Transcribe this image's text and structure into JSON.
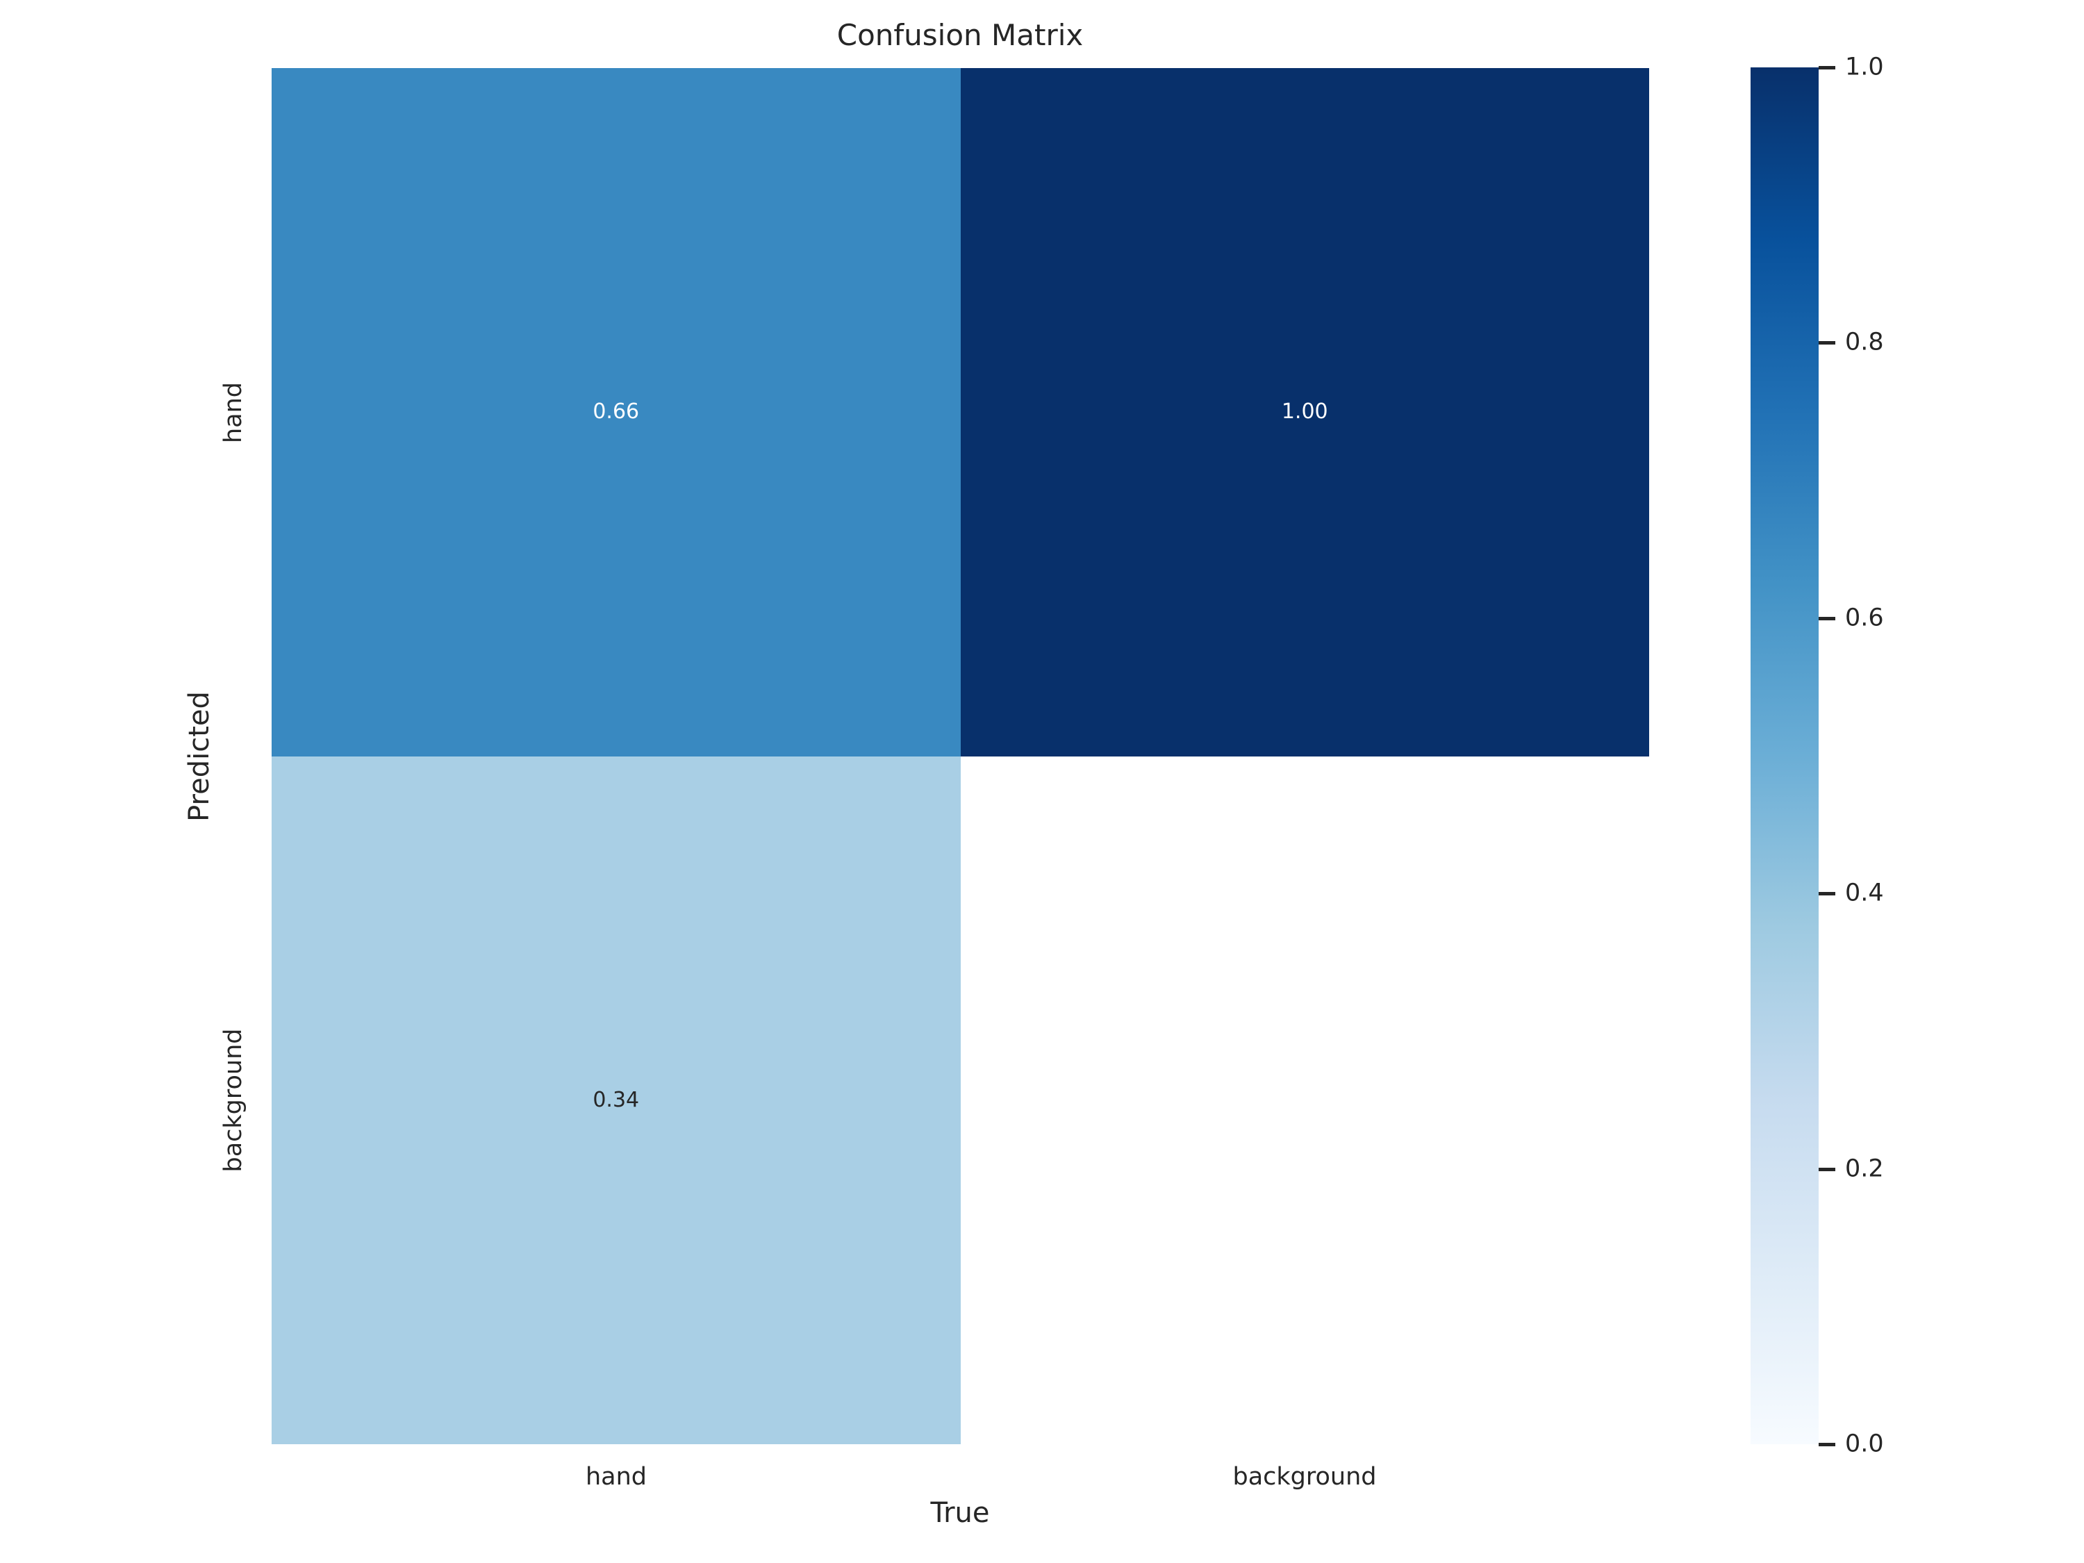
{
  "title": "Confusion Matrix",
  "axes": {
    "x_label": "True",
    "y_label": "Predicted",
    "x_tick_labels": [
      "hand",
      "background"
    ],
    "y_tick_labels": [
      "hand",
      "background"
    ]
  },
  "chart_data": {
    "type": "heatmap",
    "title": "Confusion Matrix",
    "xlabel": "True",
    "ylabel": "Predicted",
    "x_categories": [
      "hand",
      "background"
    ],
    "y_categories": [
      "hand",
      "background"
    ],
    "colormap": "Blues",
    "vmin": 0.0,
    "vmax": 1.0,
    "grid": false,
    "legend_position": "right-colorbar",
    "values": [
      [
        0.66,
        1.0
      ],
      [
        0.34,
        null
      ]
    ],
    "cells": [
      {
        "row": "hand",
        "col": "hand",
        "value": 0.66,
        "label": "0.66",
        "color": "#3989c1",
        "text_color": "#ffffff"
      },
      {
        "row": "hand",
        "col": "background",
        "value": 1.0,
        "label": "1.00",
        "color": "#08306b",
        "text_color": "#ffffff"
      },
      {
        "row": "background",
        "col": "hand",
        "value": 0.34,
        "label": "0.34",
        "color": "#a9cfe5",
        "text_color": "#262626"
      },
      {
        "row": "background",
        "col": "background",
        "value": null,
        "label": "",
        "color": "#ffffff",
        "text_color": "#262626"
      }
    ]
  },
  "colorbar": {
    "tick_labels": [
      "1.0",
      "0.8",
      "0.6",
      "0.4",
      "0.2",
      "0.0"
    ],
    "gradient_top_to_bottom": [
      "#08306b",
      "#08519c",
      "#2171b5",
      "#4292c6",
      "#6baed6",
      "#9ecae1",
      "#c6dbef",
      "#deebf7",
      "#f7fbff"
    ]
  },
  "colors": {
    "background": "#ffffff",
    "text": "#262626"
  }
}
